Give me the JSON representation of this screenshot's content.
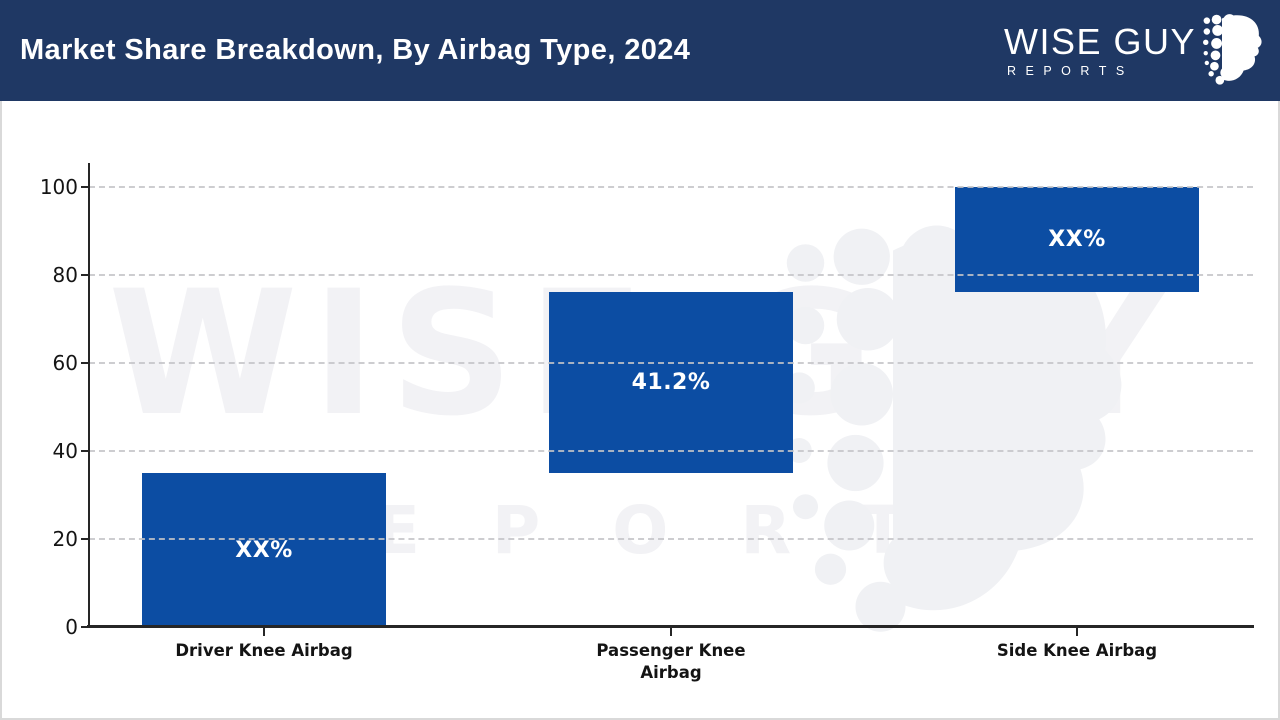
{
  "header": {
    "title": "Market Share Breakdown, By Airbag Type, 2024",
    "logo": {
      "brand": "WISE GUY",
      "sub": "REPORTS"
    }
  },
  "watermark": {
    "brand": "WISE GUY",
    "sub": "REPORTS"
  },
  "chart_data": {
    "type": "bar",
    "subtype": "floating-waterfall-columns",
    "title": "Market Share Breakdown, By Airbag Type, 2024",
    "categories": [
      "Driver Knee Airbag",
      "Passenger Knee Airbag",
      "Side Knee Airbag"
    ],
    "bars": [
      {
        "category": "Driver Knee Airbag",
        "start": 0,
        "end": 35,
        "label": "XX%"
      },
      {
        "category": "Passenger Knee Airbag",
        "start": 35,
        "end": 76.2,
        "label": "41.2%"
      },
      {
        "category": "Side Knee Airbag",
        "start": 76.2,
        "end": 100,
        "label": "XX%"
      }
    ],
    "yticks": [
      0,
      20,
      40,
      60,
      80,
      100
    ],
    "ylim": [
      0,
      105
    ],
    "xlabel": "",
    "ylabel": "",
    "grid": {
      "horizontal": true,
      "style": "dashed"
    },
    "legend": "none",
    "colors": {
      "bar": "#0c4da3",
      "header_background": "#1f3864",
      "grid": "#c4c4c8",
      "axis": "#262626",
      "bar_label_text": "#ffffff",
      "watermark": "#f2f2f5"
    }
  }
}
